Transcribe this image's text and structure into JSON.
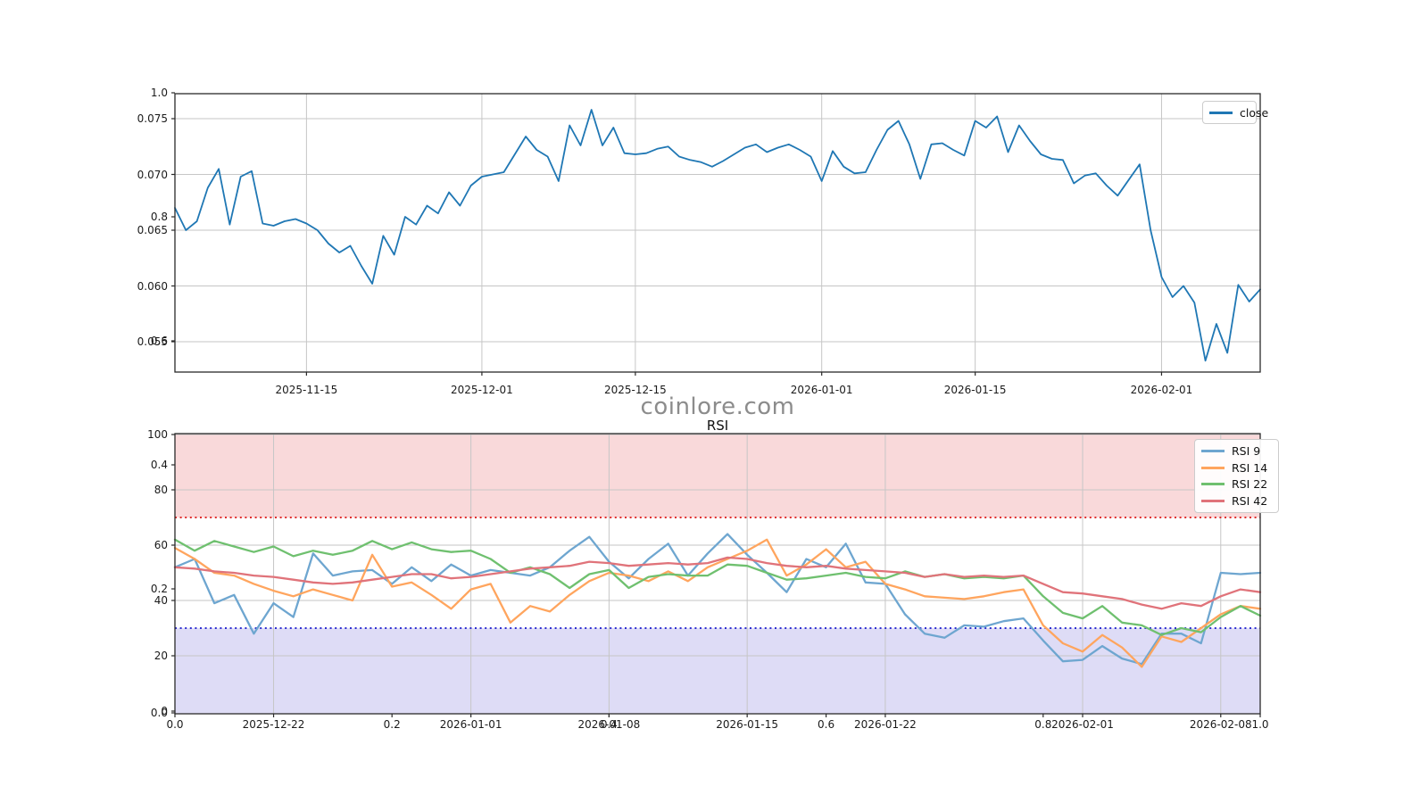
{
  "watermark": "coinlore.com",
  "overlay_axis": {
    "y_tick_labels": [
      "1.0",
      "0.8",
      "0.6",
      "0.4",
      "0.2",
      "0.0"
    ],
    "x_tick_labels": [
      "0.0",
      "0.2",
      "0.4",
      "0.6",
      "0.8",
      "1.0"
    ]
  },
  "chart_data": [
    {
      "type": "line",
      "title": "",
      "legend_label": "close",
      "color": "#1f77b4",
      "x_start_date": "2025-11-03",
      "x_step": "1 day",
      "ylim": [
        0.05228,
        0.07724
      ],
      "grid": true,
      "legend_position": "upper right",
      "x_tick_labels": [
        {
          "label": "2025-11-15",
          "day": 12
        },
        {
          "label": "2025-12-01",
          "day": 28
        },
        {
          "label": "2025-12-15",
          "day": 42
        },
        {
          "label": "2026-01-01",
          "day": 59
        },
        {
          "label": "2026-01-15",
          "day": 73
        },
        {
          "label": "2026-02-01",
          "day": 90
        }
      ],
      "y_tick_labels": [
        {
          "label": "0.075",
          "value": 0.075
        },
        {
          "label": "0.070",
          "value": 0.07
        },
        {
          "label": "0.065",
          "value": 0.065
        },
        {
          "label": "0.060",
          "value": 0.06
        },
        {
          "label": "0.055",
          "value": 0.055
        }
      ],
      "values": [
        0.067,
        0.065,
        0.0658,
        0.0688,
        0.0705,
        0.0655,
        0.0698,
        0.0703,
        0.0656,
        0.0654,
        0.0658,
        0.066,
        0.0656,
        0.065,
        0.0638,
        0.063,
        0.0636,
        0.0618,
        0.0602,
        0.0645,
        0.0628,
        0.0662,
        0.0655,
        0.0672,
        0.0665,
        0.0684,
        0.0672,
        0.069,
        0.0698,
        0.07,
        0.0702,
        0.0718,
        0.0734,
        0.0722,
        0.0716,
        0.0694,
        0.0744,
        0.0726,
        0.0758,
        0.0726,
        0.0742,
        0.0719,
        0.0718,
        0.0719,
        0.0723,
        0.0725,
        0.0716,
        0.0713,
        0.0711,
        0.0707,
        0.0712,
        0.0718,
        0.0724,
        0.0727,
        0.072,
        0.0724,
        0.0727,
        0.0722,
        0.0716,
        0.0694,
        0.0721,
        0.0707,
        0.0701,
        0.0702,
        0.0722,
        0.074,
        0.0748,
        0.0727,
        0.0696,
        0.0727,
        0.0728,
        0.0722,
        0.0717,
        0.0748,
        0.0742,
        0.0752,
        0.072,
        0.0744,
        0.073,
        0.0718,
        0.0714,
        0.0713,
        0.0692,
        0.0699,
        0.0701,
        0.069,
        0.0681,
        0.0695,
        0.0709,
        0.065,
        0.0608,
        0.059,
        0.06,
        0.0585,
        0.0533,
        0.0566,
        0.054,
        0.0601,
        0.0586,
        0.0597
      ]
    },
    {
      "type": "line",
      "title": "RSI",
      "x_start_date": "2025-12-17",
      "x_step": "1 day",
      "ylim": [
        -0.97,
        100.32
      ],
      "grid": true,
      "legend_position": "upper right",
      "overbought_level": 70,
      "oversold_level": 30,
      "overbought_line_color": "#dd1111",
      "oversold_line_color": "#1414cc",
      "overbought_band_color": "#f9d9da",
      "oversold_band_color": "#dedcf6",
      "x_tick_labels": [
        {
          "label": "2025-12-22",
          "day": 5
        },
        {
          "label": "2026-01-01",
          "day": 15
        },
        {
          "label": "2026-01-08",
          "day": 22
        },
        {
          "label": "2026-01-15",
          "day": 29
        },
        {
          "label": "2026-01-22",
          "day": 36
        },
        {
          "label": "2026-02-01",
          "day": 46
        },
        {
          "label": "2026-02-08",
          "day": 53
        }
      ],
      "y_tick_labels": [
        {
          "label": "100",
          "value": 100
        },
        {
          "label": "80",
          "value": 80
        },
        {
          "label": "60",
          "value": 60
        },
        {
          "label": "40",
          "value": 40
        },
        {
          "label": "20",
          "value": 20
        },
        {
          "label": "0",
          "value": 0
        }
      ],
      "series": [
        {
          "name": "RSI 9",
          "color": "#6ea6d0",
          "values": [
            52,
            55,
            39,
            42,
            28,
            39,
            34,
            57,
            49,
            50.5,
            51,
            46,
            52,
            47,
            53,
            49,
            51,
            50,
            49,
            52,
            58,
            63,
            54,
            48,
            55,
            60.5,
            49,
            57,
            64,
            56.5,
            50,
            43,
            55,
            52,
            60.5,
            46.5,
            46,
            35,
            28,
            26.5,
            31,
            30.5,
            32.5,
            33.5,
            25.5,
            18,
            18.5,
            23.5,
            19,
            17,
            28,
            28,
            24.5,
            50,
            49.5,
            50
          ]
        },
        {
          "name": "RSI 14",
          "color": "#ffa55e",
          "values": [
            59,
            55,
            50,
            49,
            46,
            43.5,
            41.5,
            44,
            42,
            40,
            56.5,
            45,
            46.5,
            42,
            37,
            44,
            46,
            32,
            38,
            36,
            42,
            47,
            50,
            49,
            47,
            50.5,
            47,
            52,
            55,
            58,
            62,
            49,
            53,
            58.5,
            52,
            54,
            46,
            44,
            41.5,
            41,
            40.5,
            41.5,
            43,
            44,
            31,
            24.5,
            21.5,
            27.5,
            23,
            16,
            27,
            25,
            30,
            35,
            38,
            37
          ]
        },
        {
          "name": "RSI 22",
          "color": "#6fc06f",
          "values": [
            62,
            58,
            61.5,
            59.5,
            57.5,
            59.5,
            56,
            58,
            56.5,
            58,
            61.5,
            58.5,
            61,
            58.5,
            57.5,
            58,
            55,
            50,
            52,
            49.5,
            44.5,
            49.5,
            51,
            44.5,
            48.5,
            49.5,
            49,
            49,
            53,
            52.5,
            50,
            47.5,
            48,
            49,
            50,
            48.5,
            48,
            50.5,
            48.5,
            49.5,
            48,
            48.5,
            48,
            49,
            41.5,
            35.5,
            33.5,
            38,
            32,
            31,
            27.5,
            30,
            28.5,
            34,
            38,
            34.5
          ]
        },
        {
          "name": "RSI 42",
          "color": "#e0737a",
          "values": [
            52,
            51.5,
            50.5,
            50,
            49,
            48.5,
            47.5,
            46.5,
            46,
            46.5,
            47.5,
            48.5,
            49.5,
            49.5,
            48,
            48.5,
            49.5,
            50.5,
            51.5,
            52,
            52.5,
            54,
            53.5,
            52.5,
            53,
            53.5,
            53,
            53.5,
            55.5,
            55,
            53.5,
            52.5,
            52,
            52.5,
            51.5,
            51,
            50.5,
            50,
            48.5,
            49.5,
            48.5,
            49,
            48.5,
            49,
            46,
            43,
            42.5,
            41.5,
            40.5,
            38.5,
            37,
            39,
            38,
            41.5,
            44,
            43
          ]
        }
      ]
    }
  ]
}
